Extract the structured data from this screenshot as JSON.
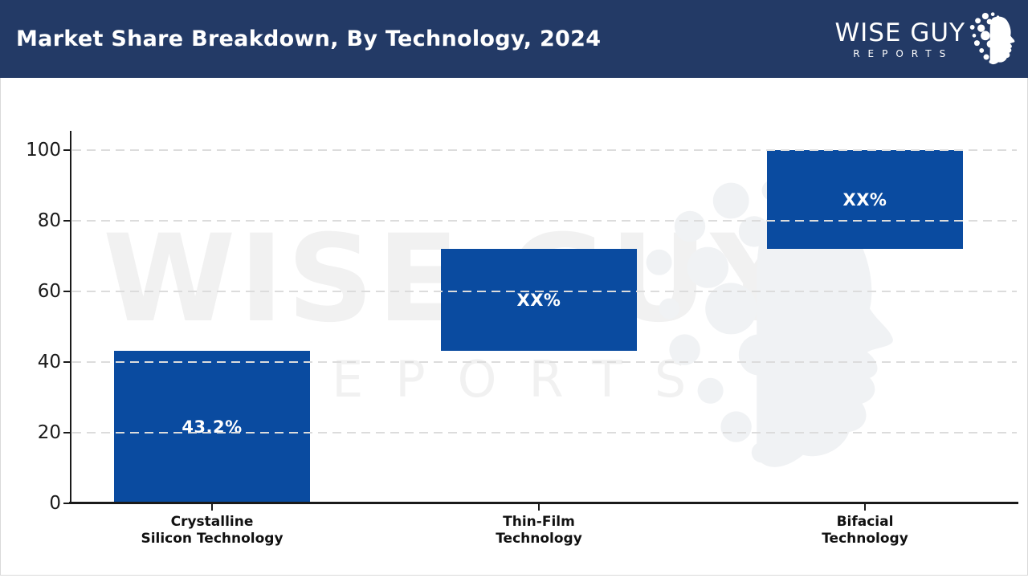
{
  "header": {
    "title": "Market Share Breakdown, By Technology, 2024",
    "logo": {
      "line1": "WISE GUY",
      "line2": "REPORTS"
    },
    "bg_color": "#233A66"
  },
  "watermark": {
    "line1": "WISE GUY",
    "line2": "REPORTS"
  },
  "colors": {
    "header_bg": "#233A66",
    "bar": "#0A4BA0",
    "grid": "#DCDCDC",
    "axis": "#1A1A1A",
    "value_label": "#FFFFFF",
    "watermark": "#F1F1F1"
  },
  "chart_data": {
    "type": "bar",
    "variant": "floating-waterfall-columns",
    "title": "Market Share Breakdown, By Technology, 2024",
    "xlabel": "",
    "ylabel": "",
    "ylim": [
      0,
      105
    ],
    "yticks": [
      0,
      20,
      40,
      60,
      80,
      100
    ],
    "grid": {
      "axis": "y",
      "style": "dashed",
      "color": "#DCDCDC",
      "drawn_over_bars": true
    },
    "legend": false,
    "bar_color": "#0A4BA0",
    "categories": [
      [
        "Crystalline",
        "Silicon Technology"
      ],
      [
        "Thin-Film",
        "Technology"
      ],
      [
        "Bifacial",
        "Technology"
      ]
    ],
    "segments": [
      {
        "name": "Crystalline Silicon Technology",
        "start": 0,
        "end": 43.2,
        "value_label": "43.2%",
        "implied_value": 43.2
      },
      {
        "name": "Thin-Film Technology",
        "start": 43.2,
        "end": 72,
        "value_label": "XX%",
        "implied_value": 28.8
      },
      {
        "name": "Bifacial Technology",
        "start": 72,
        "end": 100,
        "value_label": "XX%",
        "implied_value": 28
      }
    ]
  }
}
